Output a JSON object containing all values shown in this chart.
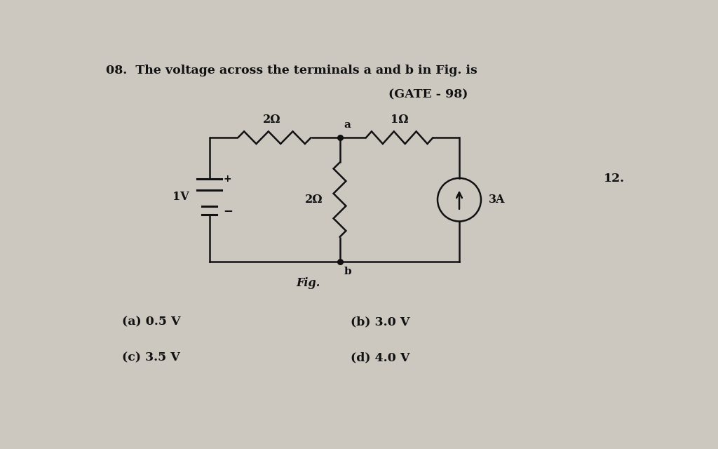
{
  "title_number": "08.",
  "title_text": "  The voltage across the terminals a and b in Fig. is",
  "gate_label": "(GATE - 98)",
  "fig_label": "Fig.",
  "side_number": "12.",
  "options": [
    {
      "label": "(a)",
      "value": "0.5 V"
    },
    {
      "label": "(b)",
      "value": "3.0 V"
    },
    {
      "label": "(c)",
      "value": "3.5 V"
    },
    {
      "label": "(d)",
      "value": "4.0 V"
    }
  ],
  "bg_color": "#ccc8c0",
  "text_color": "#111111",
  "circuit": {
    "resistor_2ohm_top_label": "2Ω",
    "resistor_1ohm_label": "1Ω",
    "resistor_2ohm_mid_label": "2Ω",
    "voltage_source_label": "1V",
    "current_source_label": "3A",
    "node_a": "a",
    "node_b": "b"
  }
}
